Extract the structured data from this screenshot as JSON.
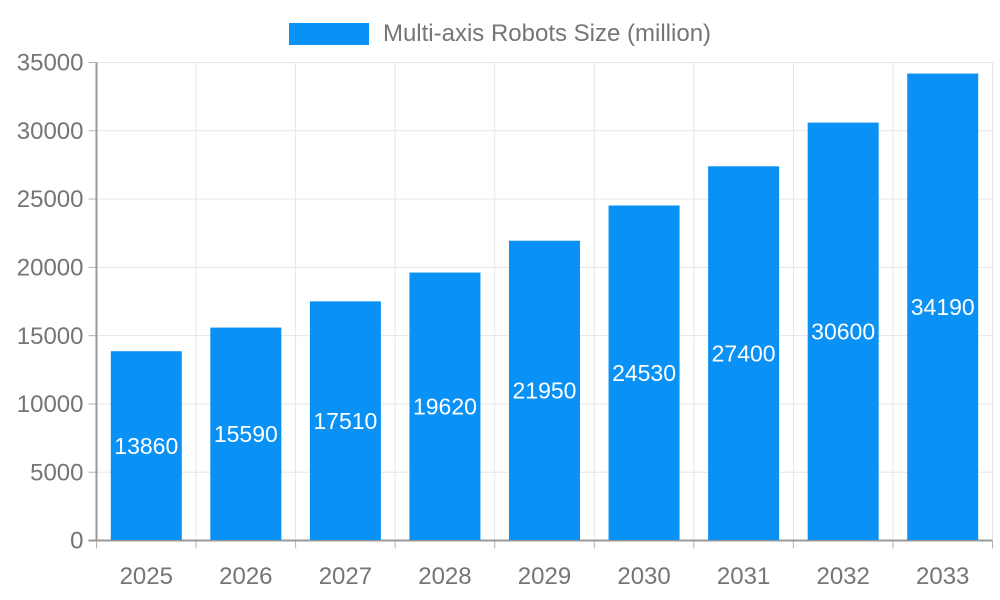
{
  "legend": {
    "items": [
      {
        "label": "Multi-axis Robots Size (million)",
        "color": "#0991F6"
      }
    ]
  },
  "chart_data": {
    "type": "bar",
    "title": "Multi-axis Robots Size (million)",
    "categories": [
      "2025",
      "2026",
      "2027",
      "2028",
      "2029",
      "2030",
      "2031",
      "2032",
      "2033"
    ],
    "series": [
      {
        "name": "Multi-axis Robots Size (million)",
        "values": [
          13860,
          15590,
          17510,
          19620,
          21950,
          24530,
          27400,
          30600,
          34190
        ]
      }
    ],
    "xlabel": "",
    "ylabel": "",
    "ylim": [
      0,
      35000
    ],
    "ytick_step": 5000,
    "yticks": [
      0,
      5000,
      10000,
      15000,
      20000,
      25000,
      30000,
      35000
    ],
    "grid": true,
    "legend_position": "top-center",
    "value_labels": "inside-center",
    "colors": {
      "bar": "#0991F6",
      "value_label": "#ffffff",
      "axis_text": "#757575",
      "grid_line": "#e6e6e6",
      "axis_line": "#999999",
      "tick": "#b3b3b3",
      "background": "#ffffff"
    }
  }
}
